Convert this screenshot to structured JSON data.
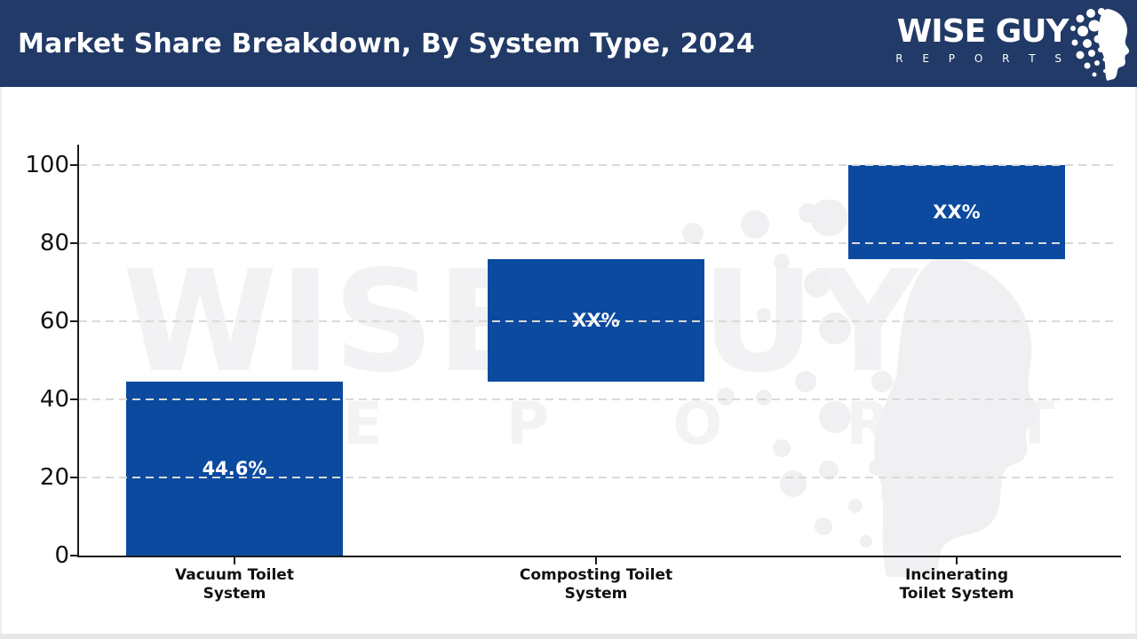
{
  "header": {
    "title": "Market Share Breakdown, By System Type, 2024",
    "logo": {
      "wordmark": "WISE GUY",
      "subtext": "R E P O R T S"
    }
  },
  "watermark": {
    "wordmark": "WISE GUY",
    "subtext": "R E P O R T S"
  },
  "chart_data": {
    "type": "bar",
    "subtype": "stepped-waterfall",
    "title": "Market Share Breakdown, By System Type, 2024",
    "categories": [
      {
        "name": "Vacuum Toilet System",
        "lines": [
          "Vacuum Toilet",
          "System"
        ]
      },
      {
        "name": "Composting Toilet System",
        "lines": [
          "Composting Toilet",
          "System"
        ]
      },
      {
        "name": "Incinerating Toilet System",
        "lines": [
          "Incinerating",
          "Toilet System"
        ]
      }
    ],
    "segments": [
      {
        "category": "Vacuum Toilet System",
        "start": 0,
        "end": 44.6,
        "value_label": "44.6%"
      },
      {
        "category": "Composting Toilet System",
        "start": 44.6,
        "end": 76,
        "value_label": "XX%"
      },
      {
        "category": "Incinerating Toilet System",
        "start": 76,
        "end": 100,
        "value_label": "XX%"
      }
    ],
    "yticks": [
      0,
      20,
      40,
      60,
      80,
      100
    ],
    "ylim": [
      0,
      105
    ],
    "xlabel": "",
    "ylabel": "",
    "grid": "horizontal-dashed",
    "legend": "none",
    "colors": {
      "bar": "#0b4a9f",
      "bar_label": "#ffffff",
      "axis": "#1a1a1a",
      "gridline": "#d9d9d9",
      "header_bg": "#213a67",
      "watermark": "#f2f2f4"
    }
  }
}
